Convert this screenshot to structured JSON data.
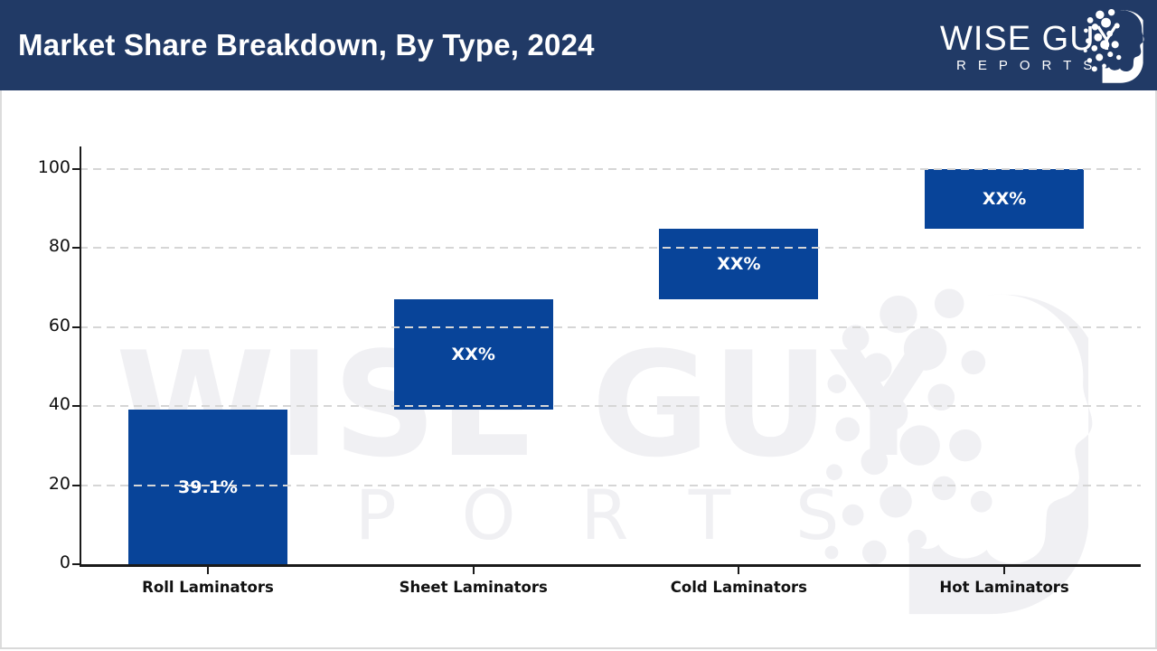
{
  "header": {
    "title": "Market Share Breakdown, By Type, 2024",
    "logo_line1": "WISE GUY",
    "logo_line2": "REPORTS",
    "bg_color": "#213a66",
    "text_color": "#ffffff"
  },
  "watermark": {
    "line1": "WISE GUY",
    "line2": "REPORTS"
  },
  "chart_data": {
    "type": "bar",
    "subtype": "floating-waterfall",
    "title": "Market Share Breakdown, By Type, 2024",
    "categories": [
      "Roll Laminators",
      "Sheet Laminators",
      "Cold Laminators",
      "Hot Laminators"
    ],
    "segments": [
      {
        "category": "Roll Laminators",
        "start": 0,
        "end": 39.1,
        "label": "39.1%"
      },
      {
        "category": "Sheet Laminators",
        "start": 39.1,
        "end": 67.0,
        "label": "XX%"
      },
      {
        "category": "Cold Laminators",
        "start": 67.0,
        "end": 84.8,
        "label": "XX%"
      },
      {
        "category": "Hot Laminators",
        "start": 84.8,
        "end": 100,
        "label": "XX%"
      }
    ],
    "xlabel": "",
    "ylabel": "",
    "yticks": [
      0,
      20,
      40,
      60,
      80,
      100
    ],
    "ylim": [
      0,
      105
    ],
    "grid": "horizontal-dashed-over-bars",
    "legend": "none",
    "bar_color": "#084499",
    "bar_label_color": "#ffffff",
    "axis_color": "#1a1a1a",
    "grid_color": "#d6d6d6"
  }
}
